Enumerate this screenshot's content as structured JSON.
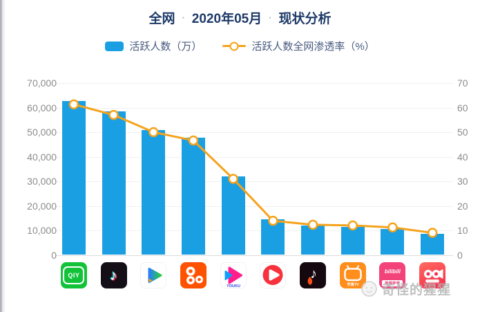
{
  "header": {
    "title_segments": [
      "全网",
      "2020年05月",
      "现状分析"
    ],
    "separator": "·"
  },
  "legend": {
    "items": [
      {
        "label": "活跃人数（万）",
        "marker": "bar-swatch",
        "color": "#1B9FE3"
      },
      {
        "label": "活跃人数全网渗透率（%）",
        "marker": "line-with-hollow-dot",
        "color": "#F5A31B"
      }
    ]
  },
  "watermark": {
    "text": "奇怪的猩猩",
    "avatar": "gorilla-sketch-avatar"
  },
  "icon_glyphs": {
    "iqiyi": "QIY",
    "music_note": "♪",
    "youku": "YOUKU",
    "mgtv": "芒果TV",
    "bilibili": "bilibili",
    "bilibili_banner": "哔哩哔哩"
  },
  "colors": {
    "bar": "#1B9FE3",
    "line": "#F5A31B",
    "title_text": "#1E3A68",
    "legend_text": "#47597E",
    "axis_label": "#8C8C8C",
    "gridline": "#F0F0F0",
    "axis_line": "#DBDBDB",
    "watermark_text": "#B5B3B3"
  },
  "chart_data": {
    "type": "combo-bar-line",
    "title": "全网 · 2020年05月 · 现状分析",
    "categories": [
      "爱奇艺",
      "抖音",
      "腾讯视频",
      "快手",
      "优酷",
      "西瓜视频",
      "抖音火山版",
      "芒果TV",
      "哔哩哔哩",
      "快手极速版"
    ],
    "series": [
      {
        "name": "活跃人数（万）",
        "type": "bar",
        "y_axis": "left",
        "color": "#1B9FE3",
        "values": [
          62700,
          58400,
          50800,
          47700,
          32000,
          14600,
          12000,
          11500,
          10700,
          8700
        ]
      },
      {
        "name": "活跃人数全网渗透率（%）",
        "type": "line",
        "y_axis": "right",
        "color": "#F5A31B",
        "marker": "hollow-circle",
        "values": [
          61.3,
          57.0,
          50.0,
          46.6,
          31.0,
          13.9,
          12.3,
          12.0,
          11.2,
          9.0
        ]
      }
    ],
    "y_axis_left": {
      "min": 0,
      "max": 70000,
      "ticks": [
        "70,000",
        "60,000",
        "50,000",
        "40,000",
        "30,000",
        "20,000",
        "10,000",
        "0"
      ]
    },
    "y_axis_right": {
      "min": 0,
      "max": 70,
      "ticks": [
        "70",
        "60",
        "50",
        "40",
        "30",
        "20",
        "10",
        "0"
      ]
    },
    "x_axis_labels": "app-logo-icons",
    "grid": true,
    "legend_position": "top"
  }
}
